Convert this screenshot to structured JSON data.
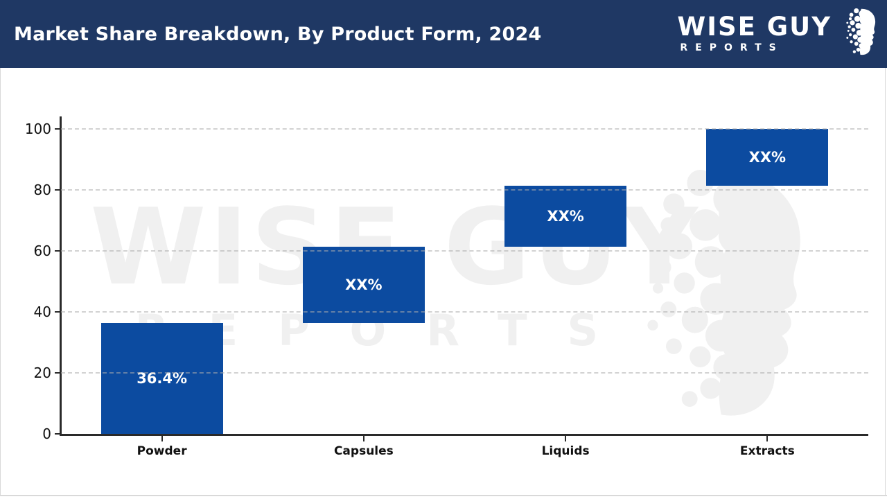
{
  "header": {
    "title": "Market Share Breakdown, By Product Form, 2024",
    "logo": {
      "line1": "WISE GUY",
      "line2": "REPORTS"
    }
  },
  "watermark": {
    "line1": "WISE GUY",
    "line2": "REPORTS"
  },
  "colors": {
    "header_bg": "#1f3864",
    "bar": "#0c4ba0",
    "axis": "#2a2a2a",
    "grid": "#adadad",
    "watermark": "#f0f0f0",
    "bar_label": "#ffffff"
  },
  "chart_data": {
    "type": "bar",
    "subtype": "waterfall",
    "title": "Market Share Breakdown, By Product Form, 2024",
    "categories": [
      "Powder",
      "Capsules",
      "Liquids",
      "Extracts"
    ],
    "segments": [
      {
        "category": "Powder",
        "start": 0,
        "end": 36.4,
        "label": "36.4%"
      },
      {
        "category": "Capsules",
        "start": 36.4,
        "end": 61.4,
        "label": "XX%"
      },
      {
        "category": "Liquids",
        "start": 61.4,
        "end": 81.3,
        "label": "XX%"
      },
      {
        "category": "Extracts",
        "start": 81.3,
        "end": 100,
        "label": "XX%"
      }
    ],
    "xlabel": "",
    "ylabel": "",
    "ylim": [
      0,
      100
    ],
    "yticks": [
      0,
      20,
      40,
      60,
      80,
      100
    ],
    "grid": "horizontal-dashed",
    "legend": "none"
  }
}
